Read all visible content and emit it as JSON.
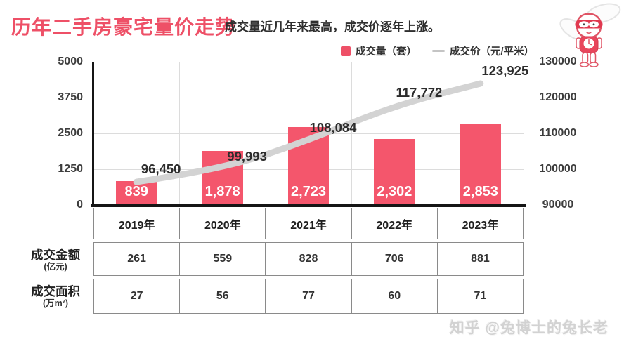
{
  "header": {
    "title": "历年二手房豪宅量价走势",
    "subtitle": "成交量近几年来最高，成交价逐年上涨。"
  },
  "legend": {
    "bars_label": "成交量（套）",
    "line_label": "成交价（元/平米）"
  },
  "colors": {
    "accent_pink": "#ee5067",
    "bar_fill": "#f4566c",
    "line_gray": "#d3d3d3",
    "axis_black": "#151515",
    "grid_gray": "#dcdcdc",
    "watermark_gray": "#d2d2d2"
  },
  "chart_data": {
    "type": "bar",
    "subtype": "bar+line combo",
    "categories": [
      "2019年",
      "2020年",
      "2021年",
      "2022年",
      "2023年"
    ],
    "series": [
      {
        "name": "成交量（套）",
        "type": "bar",
        "axis": "left",
        "values": [
          839,
          1878,
          2723,
          2302,
          2853
        ],
        "labels": [
          "839",
          "1,878",
          "2,723",
          "2,302",
          "2,853"
        ]
      },
      {
        "name": "成交价（元/平米）",
        "type": "line",
        "axis": "right",
        "values": [
          96450,
          99993,
          108084,
          117772,
          123925
        ],
        "labels": [
          "96,450",
          "99,993",
          "108,084",
          "117,772",
          "123,925"
        ]
      }
    ],
    "left_axis": {
      "min": 0,
      "max": 5000,
      "ticks": [
        0,
        1250,
        2500,
        3750,
        5000
      ],
      "labels": [
        "0",
        "1250",
        "2500",
        "3750",
        "5000"
      ]
    },
    "right_axis": {
      "min": 90000,
      "max": 130000,
      "ticks": [
        90000,
        100000,
        110000,
        120000,
        130000
      ],
      "labels": [
        "90000",
        "100000",
        "110000",
        "120000",
        "130000"
      ]
    },
    "grid": true,
    "legend_position": "top-right",
    "title": "历年二手房豪宅量价走势"
  },
  "table": {
    "rows": [
      {
        "label": "成交金额",
        "unit": "(亿元)",
        "values": [
          "261",
          "559",
          "828",
          "706",
          "881"
        ]
      },
      {
        "label": "成交面积",
        "unit": "(万m²)",
        "values": [
          "27",
          "56",
          "77",
          "60",
          "71"
        ]
      }
    ]
  },
  "watermark": "知乎 @兔博士的兔长老"
}
